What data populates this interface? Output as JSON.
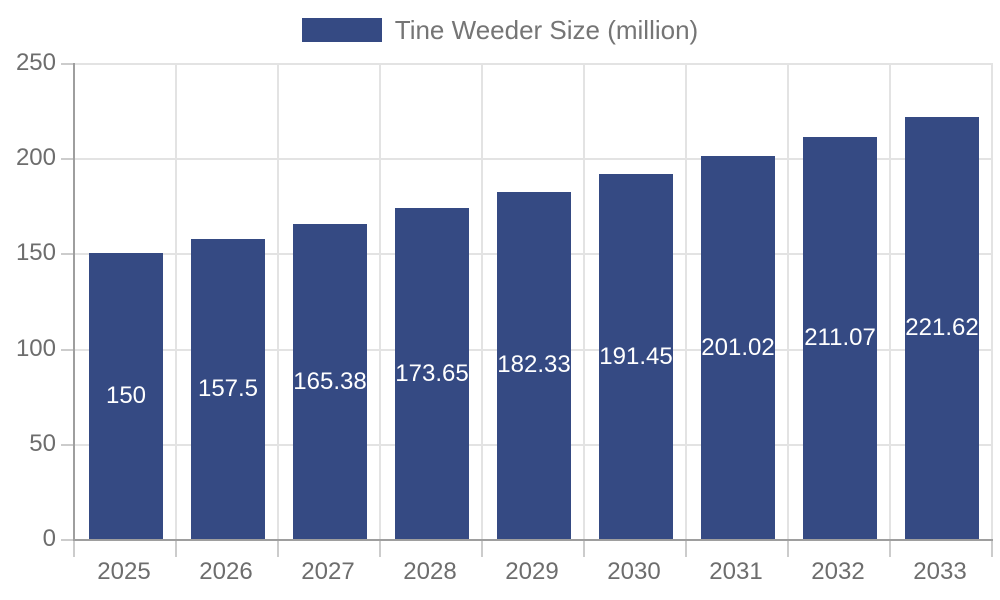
{
  "legend": {
    "label": "Tine Weeder Size (million)"
  },
  "chart_data": {
    "type": "bar",
    "title": "",
    "xlabel": "",
    "ylabel": "",
    "categories": [
      "2025",
      "2026",
      "2027",
      "2028",
      "2029",
      "2030",
      "2031",
      "2032",
      "2033"
    ],
    "series": [
      {
        "name": "Tine Weeder Size (million)",
        "values": [
          150,
          157.5,
          165.38,
          173.65,
          182.33,
          191.45,
          201.02,
          211.07,
          221.62
        ],
        "value_labels": [
          "150",
          "157.5",
          "165.38",
          "173.65",
          "182.33",
          "191.45",
          "201.02",
          "211.07",
          "221.62"
        ]
      }
    ],
    "ylim": [
      0,
      250
    ],
    "yticks": [
      0,
      50,
      100,
      150,
      200,
      250
    ],
    "grid": true,
    "legend_position": "top-center",
    "colors": {
      "bar": "#354a83",
      "bar_label": "#ffffff",
      "axis_text": "#6d6d6d",
      "legend_text": "#757575",
      "gridline": "#e3e3e3",
      "axis_line": "#9e9e9e",
      "tick": "#cccccc"
    }
  }
}
